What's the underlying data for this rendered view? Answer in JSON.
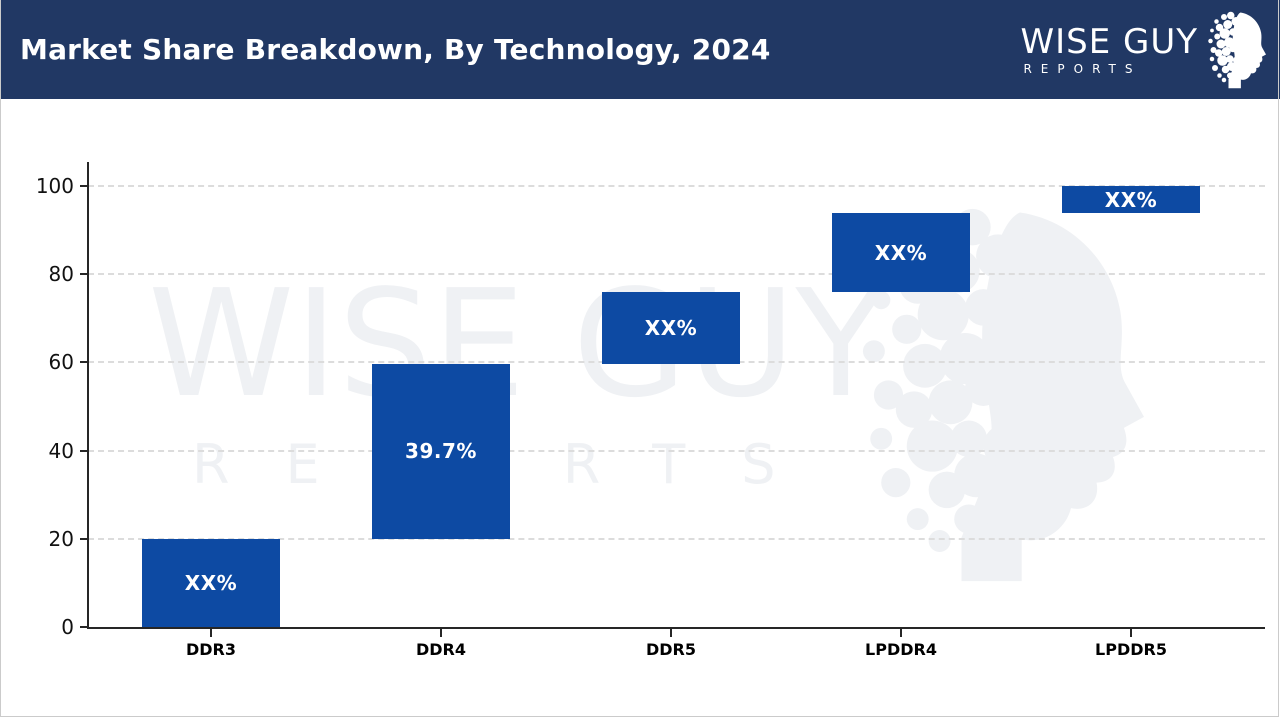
{
  "header": {
    "title": "Market Share Breakdown, By Technology, 2024",
    "logo": {
      "line1": "WISE GUY",
      "line2": "REPORTS"
    }
  },
  "watermark": {
    "line1": "WISE GUY",
    "line2": "REPORTS"
  },
  "chart_data": {
    "type": "bar",
    "variant": "waterfall",
    "title": "Market Share Breakdown, By Technology, 2024",
    "categories": [
      "DDR3",
      "DDR4",
      "DDR5",
      "LPDDR4",
      "LPDDR5"
    ],
    "values": [
      20,
      39.7,
      16.3,
      17.8,
      6.2
    ],
    "segments": [
      {
        "category": "DDR3",
        "start": 0,
        "end": 20,
        "label": "XX%"
      },
      {
        "category": "DDR4",
        "start": 20,
        "end": 59.7,
        "label": "39.7%"
      },
      {
        "category": "DDR5",
        "start": 59.7,
        "end": 76,
        "label": "XX%"
      },
      {
        "category": "LPDDR4",
        "start": 76,
        "end": 93.8,
        "label": "XX%"
      },
      {
        "category": "LPDDR5",
        "start": 93.8,
        "end": 100,
        "label": "XX%"
      }
    ],
    "yticks": [
      0,
      20,
      40,
      60,
      80,
      100
    ],
    "ylim": [
      0,
      100
    ],
    "xlabel": "",
    "ylabel": "",
    "grid": "horizontal-dashed",
    "legend": "none"
  },
  "colors": {
    "header_bg": "#213864",
    "bar": "#0d4aa3",
    "grid": "#dcdcdc",
    "axis": "#262626",
    "watermark": "#eff1f4",
    "frame": "#cbcbcb",
    "title_text": "#ffffff",
    "bar_label": "#ffffff"
  }
}
